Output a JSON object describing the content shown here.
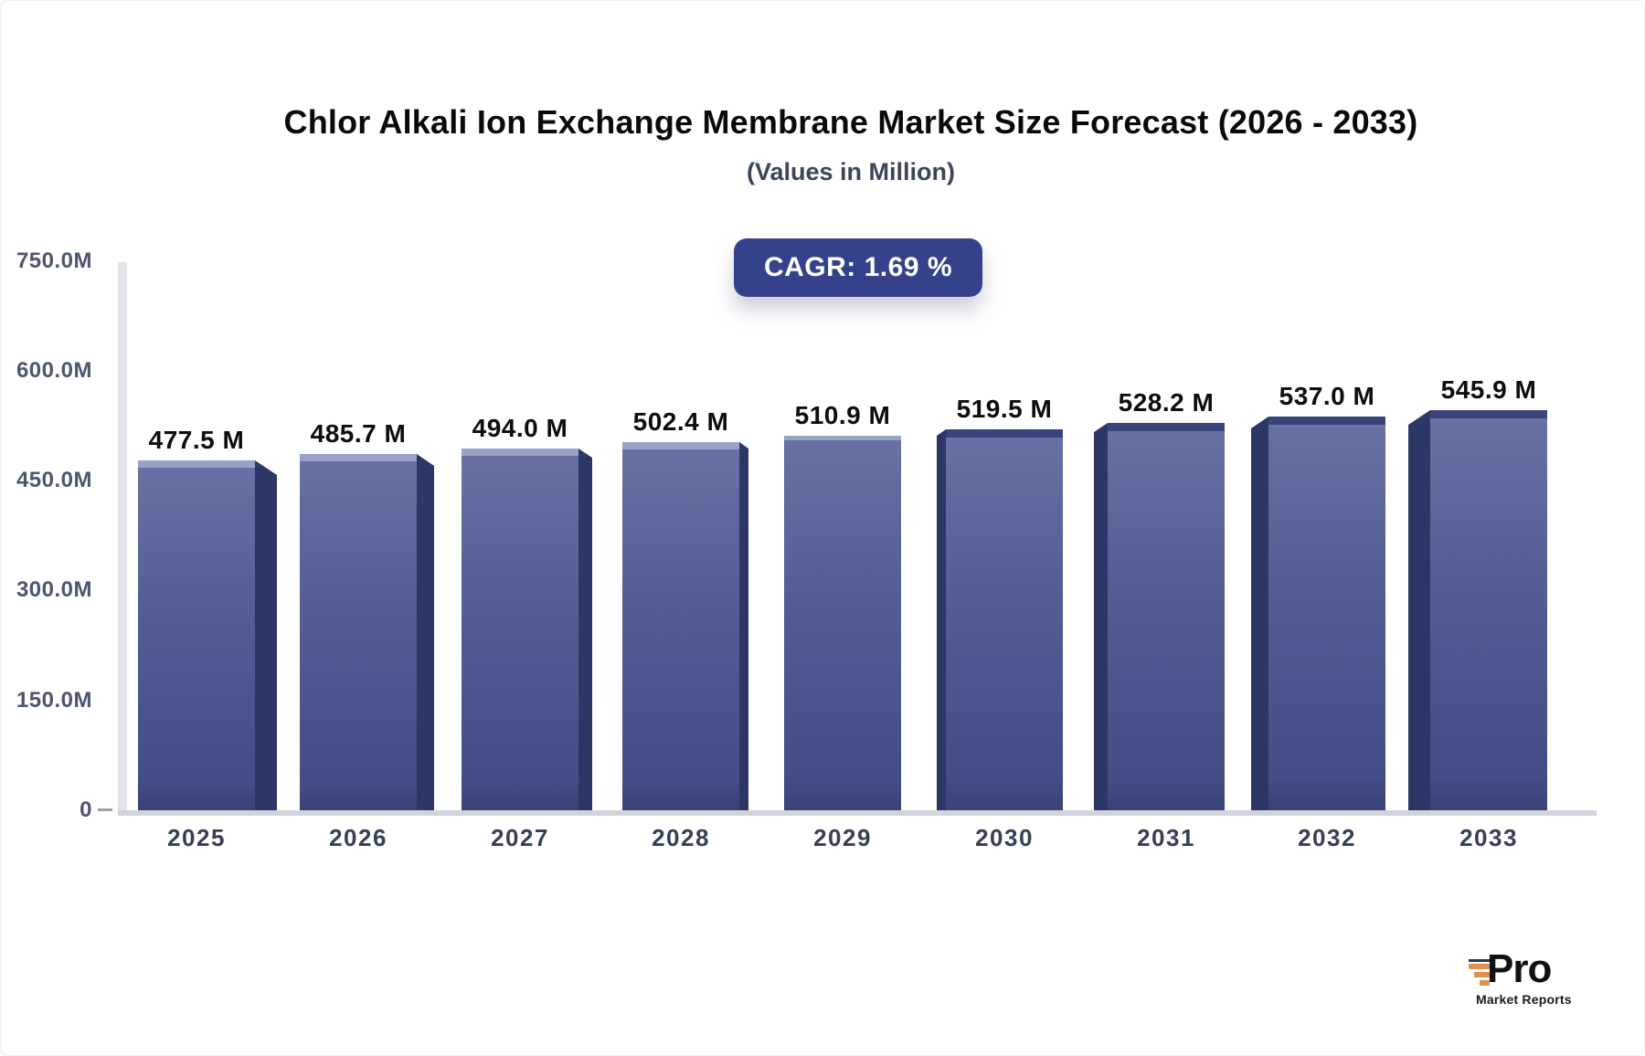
{
  "title": "Chlor Alkali Ion Exchange Membrane Market Size Forecast (2026 - 2033)",
  "subtitle": "(Values in Million)",
  "badge": {
    "label": "CAGR: 1.69 %"
  },
  "chart_data": {
    "type": "bar",
    "title": "Chlor Alkali Ion Exchange Membrane Market Size Forecast (2026 - 2033)",
    "subtitle": "(Values in Million)",
    "cagr_percent": 1.69,
    "categories": [
      "2025",
      "2026",
      "2027",
      "2028",
      "2029",
      "2030",
      "2031",
      "2032",
      "2033"
    ],
    "values": [
      477.5,
      485.7,
      494.0,
      502.4,
      510.9,
      519.5,
      528.2,
      537.0,
      545.9
    ],
    "value_labels": [
      "477.5 M",
      "485.7 M",
      "494.0 M",
      "502.4 M",
      "510.9 M",
      "519.5 M",
      "528.2 M",
      "537.0 M",
      "545.9 M"
    ],
    "unit": "Million",
    "xlabel": "",
    "ylabel": "",
    "ylim": [
      0,
      750
    ],
    "ytick_values": [
      750,
      600,
      450,
      300,
      150,
      0
    ],
    "ytick_labels": [
      "750.0M",
      "600.0M",
      "450.0M",
      "300.0M",
      "150.0M",
      "0"
    ],
    "grid": false,
    "legend": "none",
    "style": "3d-bars-central-perspective"
  },
  "colors": {
    "badge_bg": "#35428b",
    "bar_face_top": "#6872a3",
    "bar_face_mid": "#525d94",
    "bar_face_bottom": "#434d86",
    "bar_side": "#2d3766",
    "cap_light": "#99a2c7",
    "cap_dark": "#3a447c",
    "wall": "#e1e3e9",
    "floor": "#d1d4db",
    "logo_orange": "#e0924f"
  },
  "logo": {
    "brand": "Pro",
    "tagline": "Market Reports"
  }
}
